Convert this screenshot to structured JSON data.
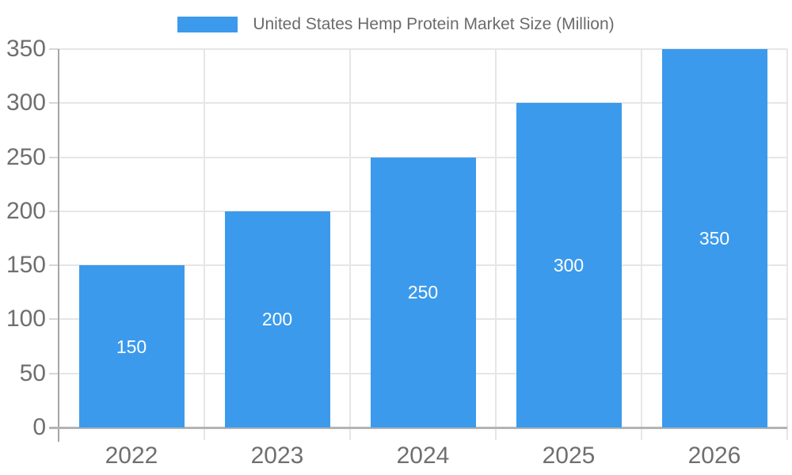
{
  "chart_data": {
    "type": "bar",
    "title": "United States Hemp Protein Market Size (Million)",
    "legend": {
      "label": "United States Hemp Protein Market Size (Million)",
      "position": "top"
    },
    "categories": [
      "2022",
      "2023",
      "2024",
      "2025",
      "2026"
    ],
    "series": [
      {
        "name": "United States Hemp Protein Market Size (Million)",
        "values": [
          150,
          200,
          250,
          300,
          350
        ]
      }
    ],
    "yticks": [
      "0",
      "50",
      "100",
      "150",
      "200",
      "250",
      "300",
      "350"
    ],
    "ylim": [
      0,
      350
    ],
    "grid": true,
    "bar_labels_inside": true,
    "colors": {
      "bar": "#3B9AEC",
      "bar_label": "#FFFFFF",
      "axis_text": "#6F6F6F",
      "legend_text": "#6B6B6B",
      "gridline": "#E6E6E6",
      "tick_line": "#D6D6D6",
      "axis_line_y": "#A6A6A6",
      "axis_line_x": "#B4B4B4"
    }
  }
}
